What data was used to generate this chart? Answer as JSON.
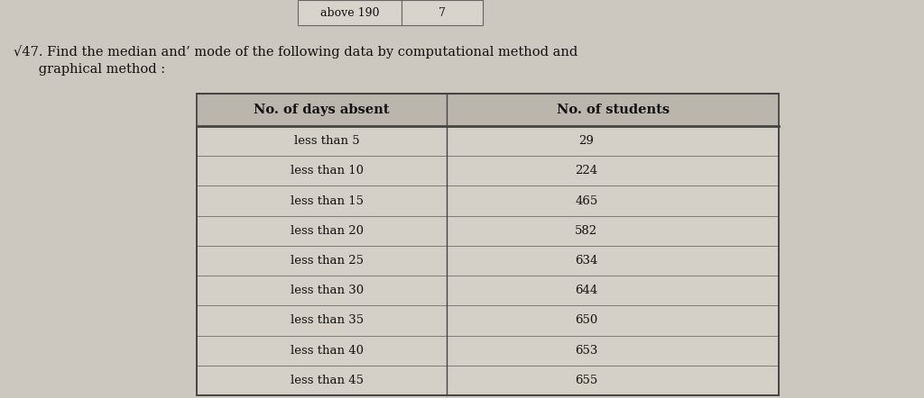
{
  "title_top_label": "above 190",
  "title_top_value": "7",
  "question_line1": "√47. Find the median and’ mode of the following data by computational method and",
  "question_line2": "      graphical method :",
  "col1_header": "No. of days absent",
  "col2_header": "No. of students",
  "rows": [
    [
      "less than 5",
      "29"
    ],
    [
      "less than 10",
      "224"
    ],
    [
      "less than 15",
      "465"
    ],
    [
      "less than 20",
      "582"
    ],
    [
      "less than 25",
      "634"
    ],
    [
      "less than 30",
      "644"
    ],
    [
      "less than 35",
      "650"
    ],
    [
      "less than 40",
      "653"
    ],
    [
      "less than 45",
      "655"
    ]
  ],
  "bg_color": "#ccc8c0",
  "table_bg": "#d4d0c8",
  "header_bg": "#bab6ae",
  "border_color": "#444444",
  "text_color": "#111111",
  "top_box_bg": "#d8d4cc",
  "top_box_border": "#666666"
}
